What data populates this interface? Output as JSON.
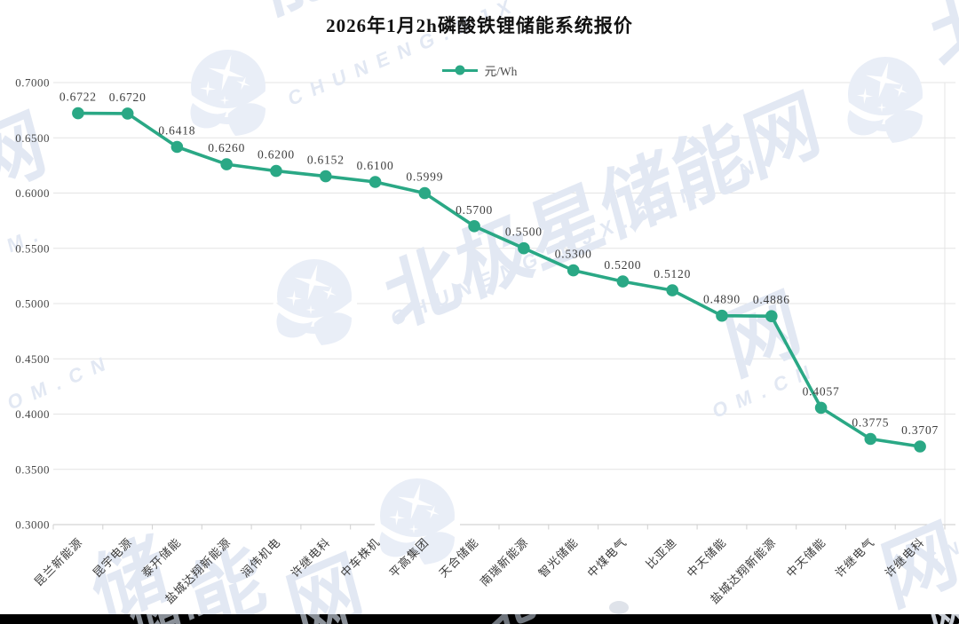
{
  "page": {
    "title": "2026年1月2h磷酸铁锂储能系统报价"
  },
  "legend": {
    "label": "元/Wh"
  },
  "watermark": {
    "brand": "北极星储能网",
    "domain": "CHUNENG.BJX.COM.CN"
  },
  "colors": {
    "series": "#2aa885",
    "grid": "#e4e4e4",
    "axis_line": "#c9c9c9",
    "tick": "#cfcfcf",
    "y_label": "#484848",
    "value_label": "#3d3d3d",
    "x_label": "#3a3a3a",
    "title": "#111111",
    "watermark_text": "#e2e8f3",
    "watermark_logo": "#e9eef7",
    "bottom_bar": "#000000"
  },
  "chart_data": {
    "type": "line",
    "title": "2026年1月2h磷酸铁锂储能系统报价",
    "legend": [
      "元/Wh"
    ],
    "unit": "元/Wh",
    "categories": [
      "昆兰新能源",
      "昆宇电源",
      "泰开储能",
      "盐城达翔新能源",
      "润伟机电",
      "许继电科",
      "中车株机",
      "平高集团",
      "天合储能",
      "南瑞新能源",
      "智光储能",
      "中煤电气",
      "比亚迪",
      "中天储能",
      "盐城达翔新能源",
      "中天储能",
      "许继电气",
      "许继电科"
    ],
    "values": [
      0.6722,
      0.672,
      0.6418,
      0.626,
      0.62,
      0.6152,
      0.61,
      0.5999,
      0.57,
      0.55,
      0.53,
      0.52,
      0.512,
      0.489,
      0.4886,
      0.4057,
      0.3775,
      0.3707
    ],
    "ylim": [
      0.3,
      0.7
    ],
    "ytick_interval": 0.05,
    "value_label_decimals": 4,
    "grid": true,
    "legend_position": "top-center",
    "x_label_rotation": 45
  }
}
